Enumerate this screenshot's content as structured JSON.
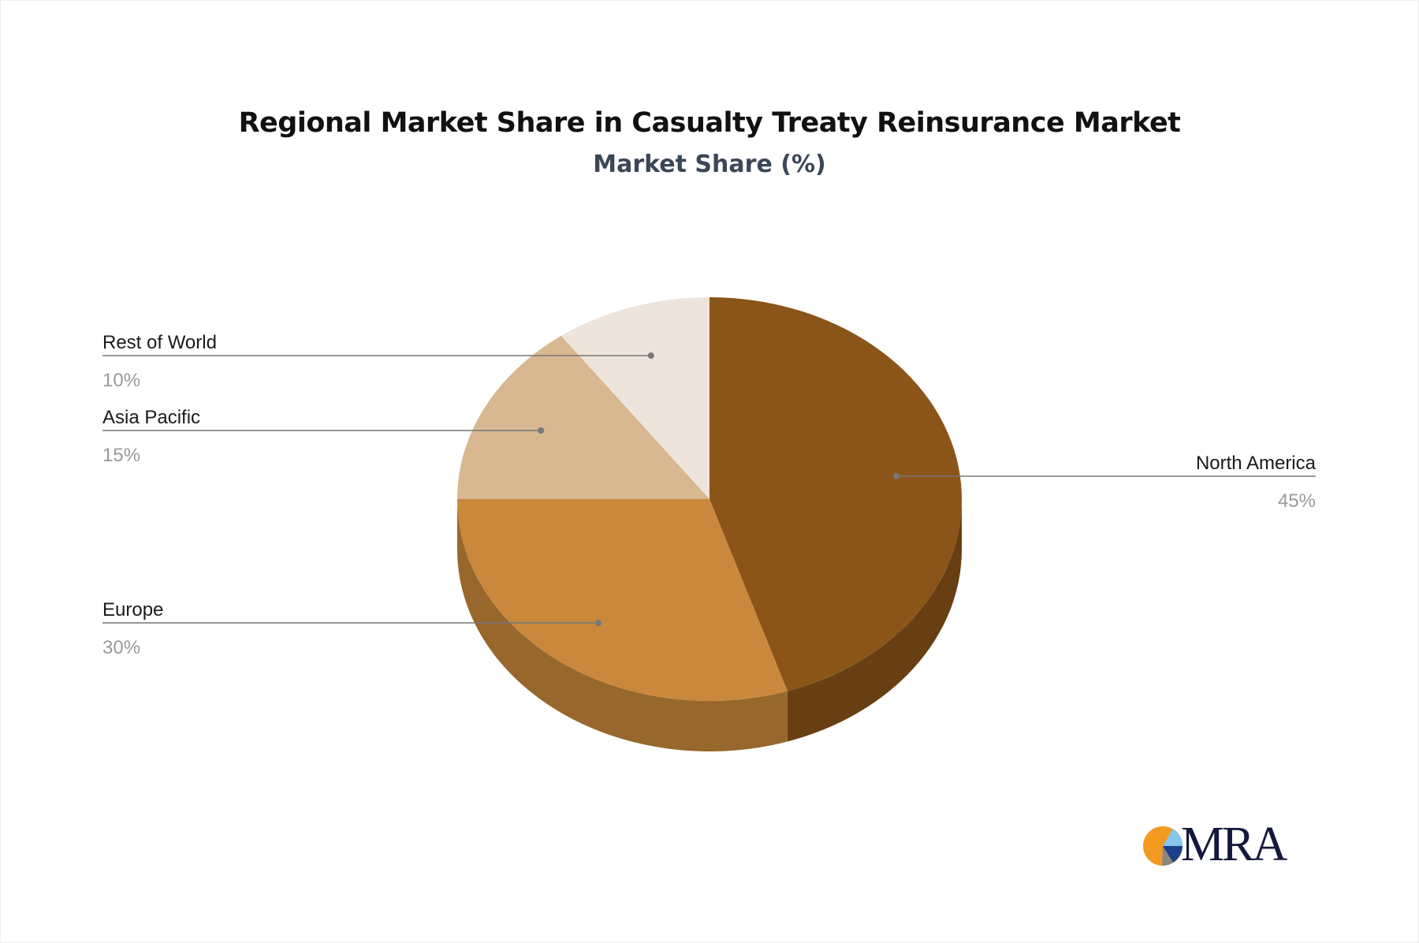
{
  "chart_data": {
    "type": "pie",
    "style": "3d",
    "title": "Regional Market Share in Casualty Treaty Reinsurance Market",
    "subtitle": "Market Share (%)",
    "slices": [
      {
        "label": "North America",
        "value": 45,
        "display": "45%",
        "color": "#8b5519",
        "side_color": "#673f12"
      },
      {
        "label": "Europe",
        "value": 30,
        "display": "30%",
        "color": "#c9883c",
        "side_color": "#97672b"
      },
      {
        "label": "Asia Pacific",
        "value": 15,
        "display": "15%",
        "color": "#d8b791",
        "side_color": "#a88a68"
      },
      {
        "label": "Rest of World",
        "value": 10,
        "display": "10%",
        "color": "#ede4db",
        "side_color": "#c2b7ab"
      }
    ]
  },
  "logo": {
    "text": "MRA",
    "colors": [
      "#f39a21",
      "#86c7ec",
      "#1c3f8c",
      "#8c8782"
    ]
  }
}
